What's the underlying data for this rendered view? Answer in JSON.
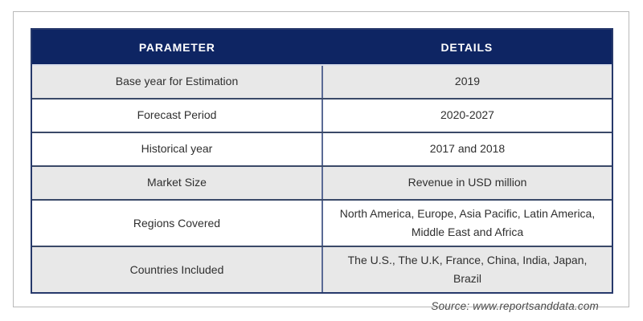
{
  "table": {
    "columns": [
      "PARAMETER",
      "DETAILS"
    ],
    "rows": [
      {
        "parameter": "Base year for Estimation",
        "details": "2019"
      },
      {
        "parameter": "Forecast Period",
        "details": "2020-2027"
      },
      {
        "parameter": "Historical year",
        "details": "2017 and 2018"
      },
      {
        "parameter": "Market Size",
        "details": "Revenue in USD million"
      },
      {
        "parameter": "Regions Covered",
        "details": "North America, Europe, Asia Pacific, Latin America, Middle East and Africa"
      },
      {
        "parameter": "Countries Included",
        "details": "The U.S., The  U.K, France, China, India, Japan, Brazil"
      }
    ]
  },
  "source": {
    "label": "Source: www.reportsanddata.com"
  },
  "colors": {
    "header_bg": "#0e2563",
    "header_text": "#ffffff",
    "shaded_row_bg": "#e8e8e8",
    "row_bg": "#ffffff",
    "row_border": "#3a4968",
    "column_divider": "#5a6a95",
    "table_outline": "#27396b",
    "frame_border": "#b9b9b9",
    "cell_text": "#2f2f2f",
    "source_text": "#4a4a4a"
  }
}
